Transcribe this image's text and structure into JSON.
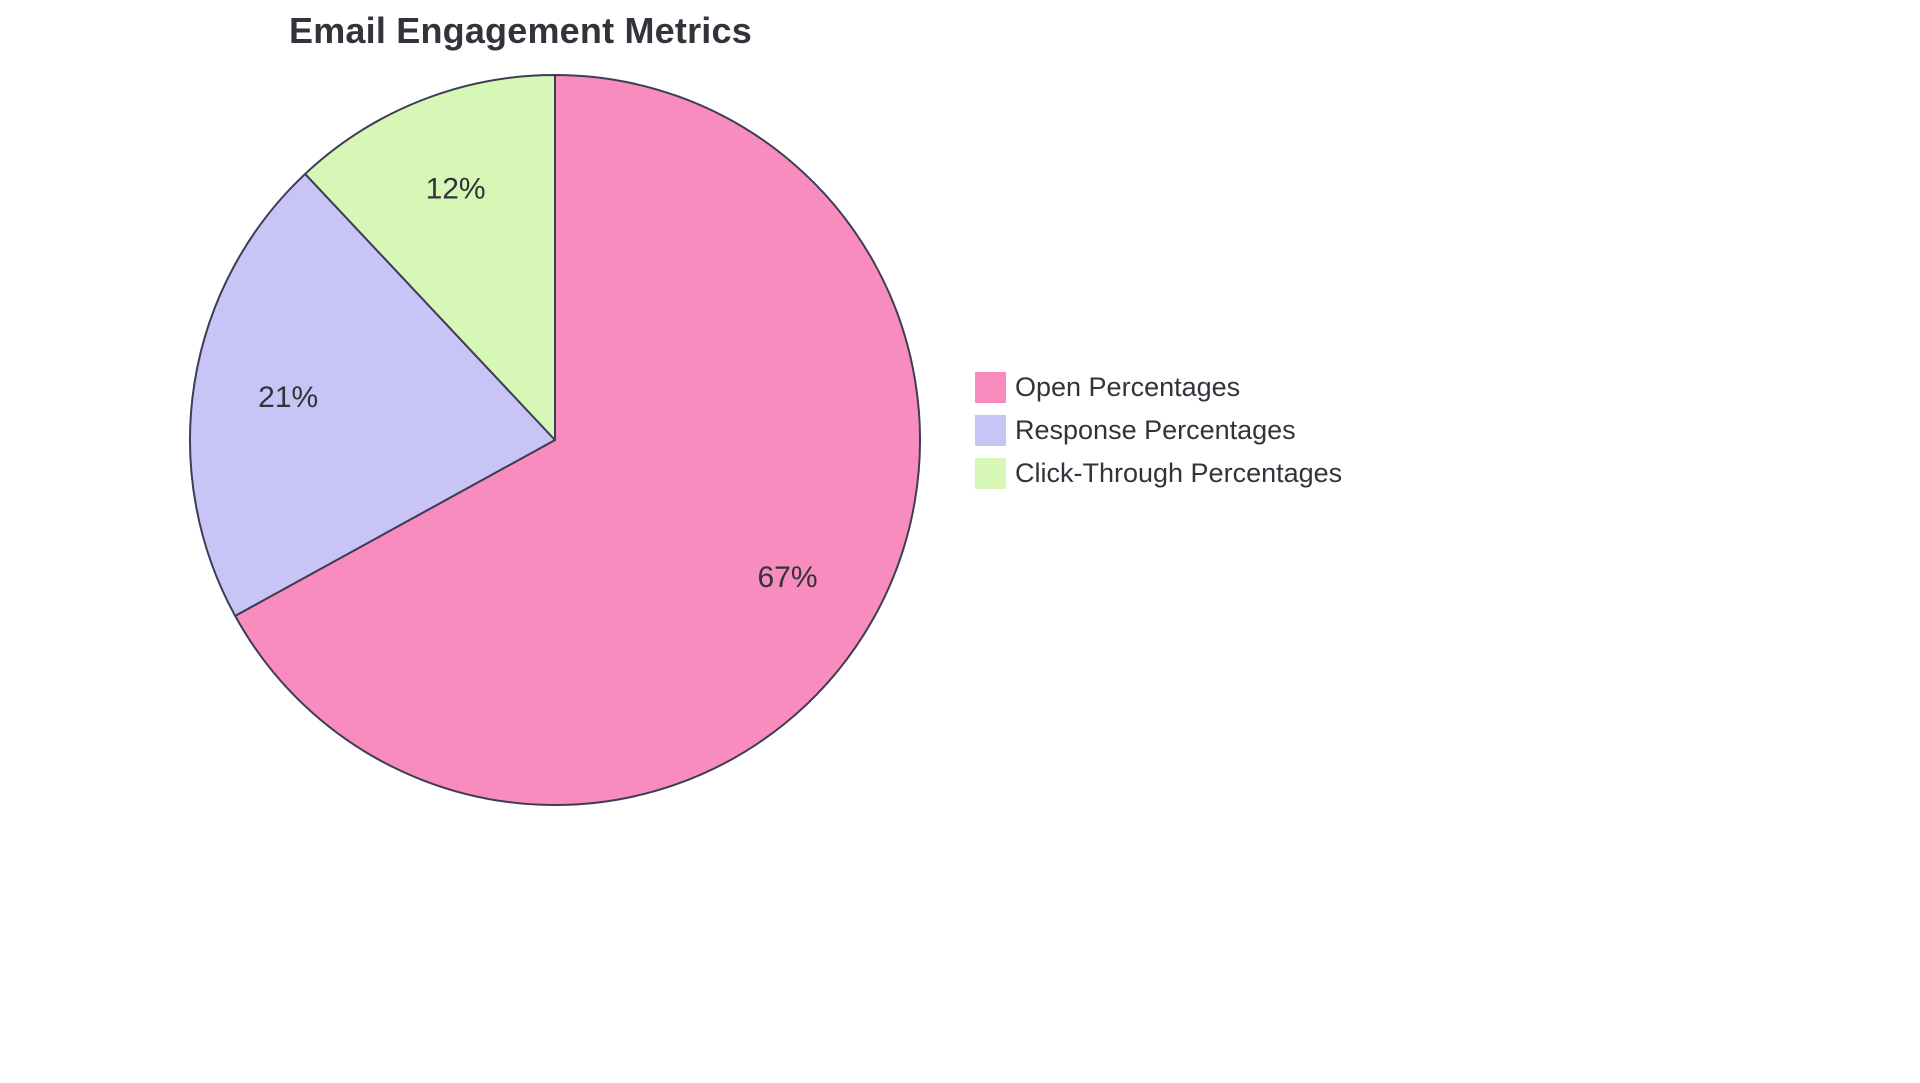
{
  "page": {
    "background_color": "#FFFFFF"
  },
  "chart_data": {
    "type": "pie",
    "title": "Email Engagement Metrics",
    "labels": [
      "Open Percentages",
      "Response Percentages",
      "Click-Through Percentages"
    ],
    "values": [
      67,
      21,
      12
    ],
    "value_labels": [
      "67%",
      "21%",
      "12%"
    ],
    "colors": [
      "#F98CBE",
      "#C8C4F6",
      "#D7F7B6"
    ],
    "slice_border_color": "#3D3D56",
    "slice_border_width": 2,
    "label_color": "#33333C",
    "start_angle_deg": 0,
    "direction": "clockwise",
    "legend_position": "right",
    "grid": false
  }
}
